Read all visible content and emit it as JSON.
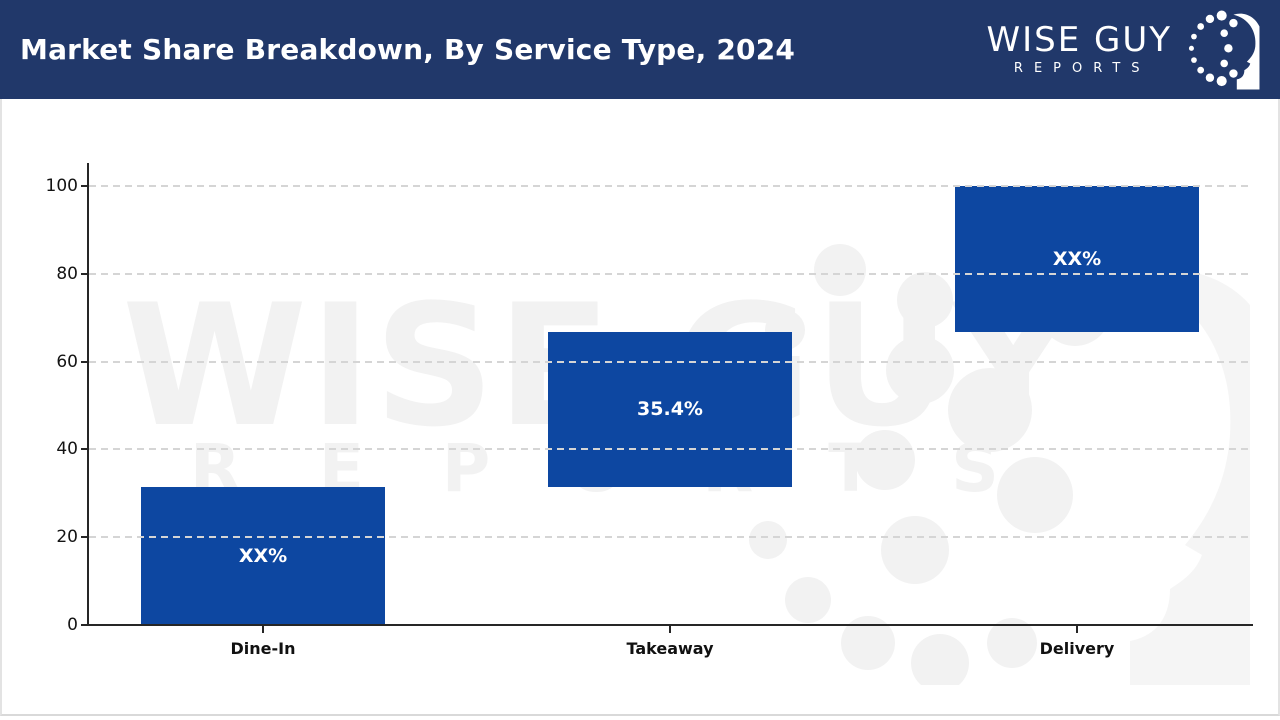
{
  "header": {
    "title": "Market Share Breakdown, By Service Type, 2024",
    "bg_color": "#21386a",
    "logo": {
      "line1": "WISE GUY",
      "line2": "REPORTS"
    }
  },
  "watermark": {
    "line1": "WISE GUY",
    "line2": "REPORTS"
  },
  "chart_data": {
    "type": "bar",
    "subtype": "waterfall",
    "title": "Market Share Breakdown, By Service Type, 2024",
    "categories": [
      "Dine-In",
      "Takeaway",
      "Delivery"
    ],
    "segments": [
      {
        "category": "Dine-In",
        "start": 0,
        "end": 31.4,
        "label": "XX%"
      },
      {
        "category": "Takeaway",
        "start": 31.4,
        "end": 66.8,
        "label": "35.4%"
      },
      {
        "category": "Delivery",
        "start": 66.8,
        "end": 100,
        "label": "XX%"
      }
    ],
    "y_ticks": [
      0,
      20,
      40,
      60,
      80,
      100
    ],
    "ylim": [
      0,
      105
    ],
    "xlabel": "",
    "ylabel": "",
    "bar_color": "#0d47a1",
    "grid": "horizontal-dashed",
    "gridline_color": "#d5d5d5",
    "value_label_color": "#ffffff"
  }
}
